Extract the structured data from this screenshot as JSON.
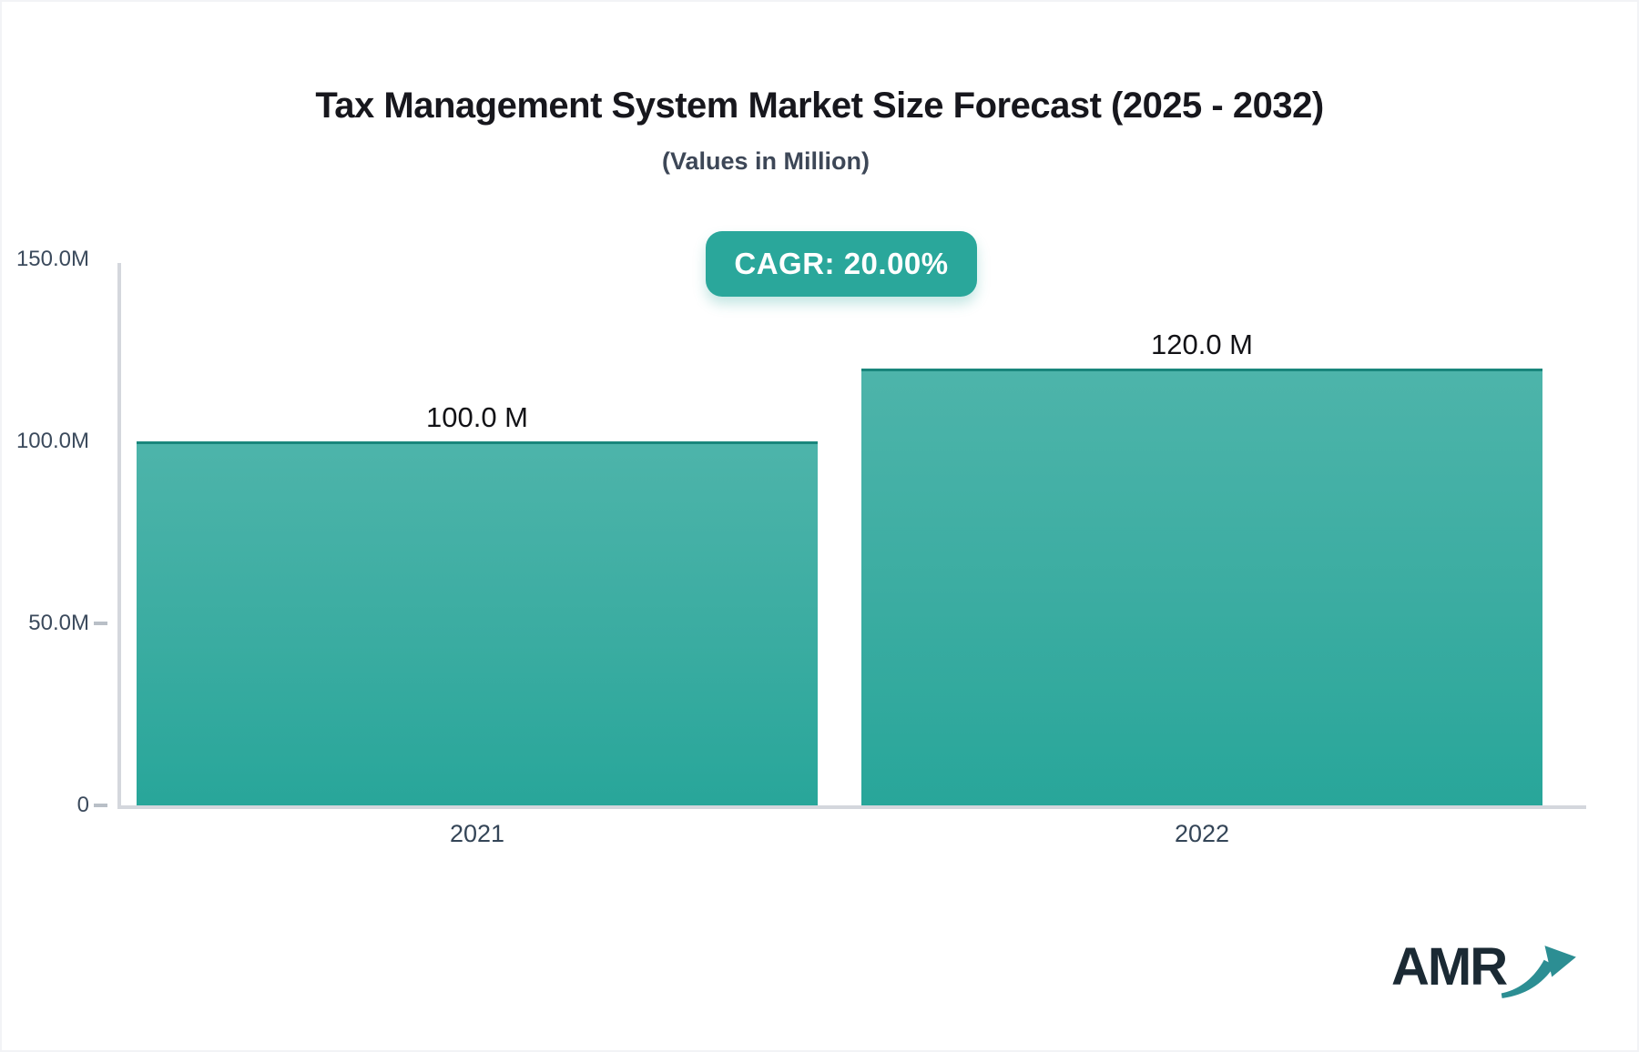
{
  "header": {
    "title": "Tax Management System Market Size Forecast (2025 - 2032)",
    "subtitle": "(Values in Million)"
  },
  "cagr_badge": {
    "label": "CAGR: 20.00%",
    "color": "#2aa79b"
  },
  "chart_data": {
    "type": "bar",
    "title": "Tax Management System Market Size Forecast (2025 - 2032)",
    "subtitle": "(Values in Million)",
    "categories": [
      "2021",
      "2022"
    ],
    "values": [
      100.0,
      120.0
    ],
    "value_labels": [
      "100.0 M",
      "120.0 M"
    ],
    "xlabel": "",
    "ylabel": "",
    "ylim": [
      0,
      150
    ],
    "yticks": [
      {
        "label": "150.0M",
        "value": 150,
        "dash": false
      },
      {
        "label": "100.0M",
        "value": 100,
        "dash": false
      },
      {
        "label": "50.0M",
        "value": 50,
        "dash": true
      },
      {
        "label": "0",
        "value": 0,
        "dash": true
      }
    ],
    "grid": false,
    "legend": false,
    "bar_color_top": "#4db4aa",
    "bar_color_bottom": "#28a69a",
    "bar_border_top_color": "#19867c",
    "axis_color": "#d4d7dd"
  },
  "logo": {
    "text": "AMR",
    "icon": "trend-up-arrow-icon",
    "text_color": "#1b2a34",
    "arrow_color": "#2c8e93"
  }
}
